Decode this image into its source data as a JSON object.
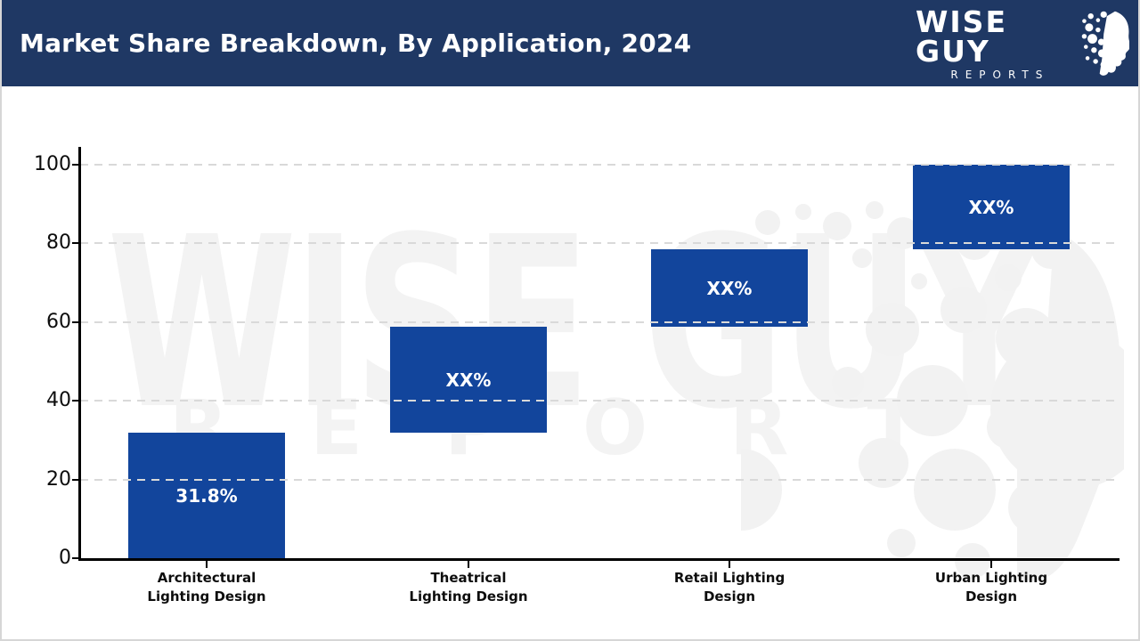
{
  "header": {
    "title": "Market Share Breakdown, By Application, 2024",
    "logo": {
      "line1": "WISE GUY",
      "line2": "REPORTS"
    }
  },
  "watermark": {
    "line1": "WISE GUY",
    "line2": "REPORTS"
  },
  "chart_data": {
    "type": "bar",
    "variant": "floating-waterfall",
    "title": "Market Share Breakdown, By Application, 2024",
    "categories": [
      "Architectural Lighting Design",
      "Theatrical Lighting Design",
      "Retail Lighting Design",
      "Urban Lighting Design"
    ],
    "segments": [
      {
        "category": "Architectural Lighting Design",
        "category_line1": "Architectural",
        "category_line2": "Lighting Design",
        "start": 0,
        "end": 31.8,
        "label": "31.8%"
      },
      {
        "category": "Theatrical Lighting Design",
        "category_line1": "Theatrical",
        "category_line2": "Lighting Design",
        "start": 31.8,
        "end": 58.8,
        "label": "XX%"
      },
      {
        "category": "Retail Lighting Design",
        "category_line1": "Retail Lighting",
        "category_line2": "Design",
        "start": 58.8,
        "end": 78.5,
        "label": "XX%"
      },
      {
        "category": "Urban Lighting Design",
        "category_line1": "Urban Lighting",
        "category_line2": "Design",
        "start": 78.5,
        "end": 100,
        "label": "XX%"
      }
    ],
    "xlabel": "",
    "ylabel": "",
    "yticks": [
      0,
      20,
      40,
      60,
      80,
      100
    ],
    "ylim": [
      0,
      104
    ],
    "grid": {
      "horizontal": true,
      "style": "dashed",
      "color": "#d9d9d9",
      "drawn_over_bars": true
    },
    "legend": "none",
    "colors": {
      "bar": "#12459c",
      "bar_label": "#ffffff",
      "axis": "#000000",
      "header_bg": "#1f3864",
      "watermark": "#f3f3f3"
    }
  }
}
